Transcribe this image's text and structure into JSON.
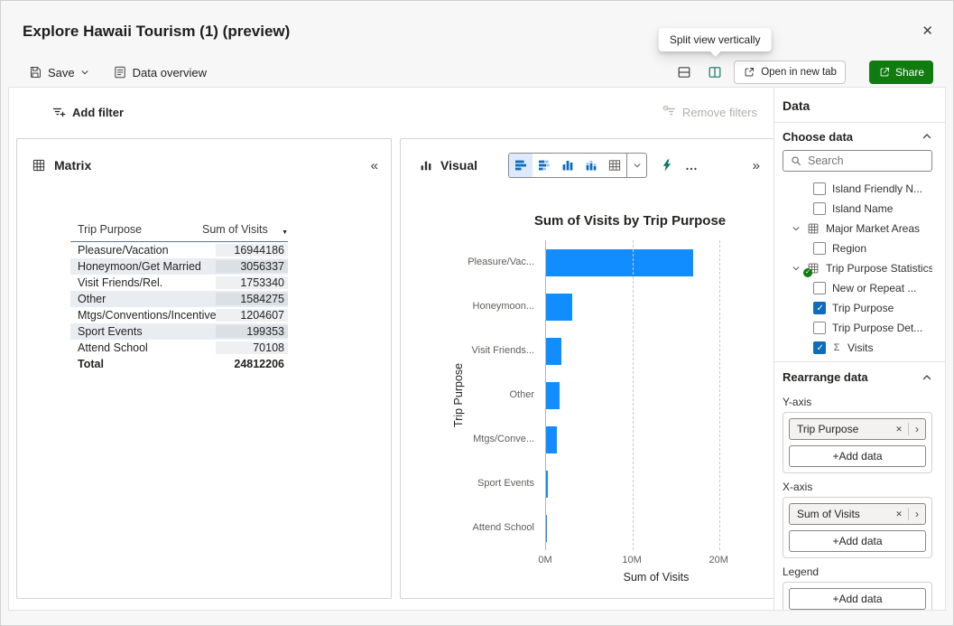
{
  "colors": {
    "bar_blue": "#118DFF",
    "checkbox_blue": "#0f6cbd",
    "share_green": "#107c10",
    "active_teal": "#117865",
    "matrix_alt_row": "#e9edf1",
    "header_underline": "#118DFF"
  },
  "window": {
    "title": "Explore Hawaii Tourism (1) (preview)",
    "close_glyph": "✕"
  },
  "toolbar": {
    "save_label": "Save",
    "data_overview_label": "Data overview",
    "open_in_new_tab_label": "Open in new tab",
    "share_label": "Share",
    "tooltip_text": "Split view vertically"
  },
  "filter_bar": {
    "add_filter_label": "Add filter",
    "remove_filters_label": "Remove filters"
  },
  "matrix": {
    "panel_title": "Matrix",
    "collapse_glyph": "«",
    "columns": [
      "Trip Purpose",
      "Sum of Visits"
    ],
    "sort_glyph": "▼",
    "rows": [
      {
        "purpose": "Pleasure/Vacation",
        "visits": "16944186"
      },
      {
        "purpose": "Honeymoon/Get Married",
        "visits": "3056337"
      },
      {
        "purpose": "Visit Friends/Rel.",
        "visits": "1753340"
      },
      {
        "purpose": "Other",
        "visits": "1584275"
      },
      {
        "purpose": "Mtgs/Conventions/Incentive",
        "visits": "1204607"
      },
      {
        "purpose": "Sport Events",
        "visits": "199353"
      },
      {
        "purpose": "Attend School",
        "visits": "70108"
      }
    ],
    "total_label": "Total",
    "total_value": "24812206"
  },
  "visual": {
    "panel_title": "Visual",
    "expand_glyph": "»",
    "more_glyph": "…"
  },
  "chart_data": {
    "type": "bar",
    "orientation": "horizontal",
    "title": "Sum of Visits by Trip Purpose",
    "categories": [
      "Pleasure/Vac...",
      "Honeymoon...",
      "Visit Friends...",
      "Other",
      "Mtgs/Conve...",
      "Sport Events",
      "Attend School"
    ],
    "values": [
      16944186,
      3056337,
      1753340,
      1584275,
      1204607,
      199353,
      70108
    ],
    "xlabel": "Sum of Visits",
    "ylabel": "Trip Purpose",
    "x_ticks": [
      {
        "label": "0M",
        "value": 0
      },
      {
        "label": "10M",
        "value": 10000000
      },
      {
        "label": "20M",
        "value": 20000000
      }
    ],
    "xlim": [
      0,
      25600000
    ],
    "bar_color": "#118DFF",
    "gridlines": "vertical-dashed",
    "legend_position": "none"
  },
  "data_panel": {
    "title": "Data",
    "choose_data": {
      "label": "Choose data",
      "search_placeholder": "Search",
      "fields": [
        {
          "label": "Island Friendly N...",
          "kind": "field",
          "checked": false
        },
        {
          "label": "Island Name",
          "kind": "field",
          "checked": false
        },
        {
          "label": "Major Market Areas",
          "kind": "table",
          "active": false
        },
        {
          "label": "Region",
          "kind": "field",
          "checked": false
        },
        {
          "label": "Trip Purpose Statistics",
          "kind": "table",
          "active": true
        },
        {
          "label": "New or Repeat ...",
          "kind": "field",
          "checked": false
        },
        {
          "label": "Trip Purpose",
          "kind": "field",
          "checked": true
        },
        {
          "label": "Trip Purpose Det...",
          "kind": "field",
          "checked": false
        },
        {
          "label": "Visits",
          "kind": "field",
          "checked": true,
          "sigma": true
        }
      ]
    },
    "rearrange": {
      "label": "Rearrange data",
      "sections": [
        {
          "label": "Y-axis",
          "pill": "Trip Purpose",
          "has_pill": true
        },
        {
          "label": "X-axis",
          "pill": "Sum of Visits",
          "has_pill": true
        },
        {
          "label": "Legend",
          "pill": null,
          "has_pill": false
        }
      ],
      "add_data_label": "+Add data",
      "pill_remove_glyph": "✕",
      "pill_expand_glyph": "›"
    }
  }
}
